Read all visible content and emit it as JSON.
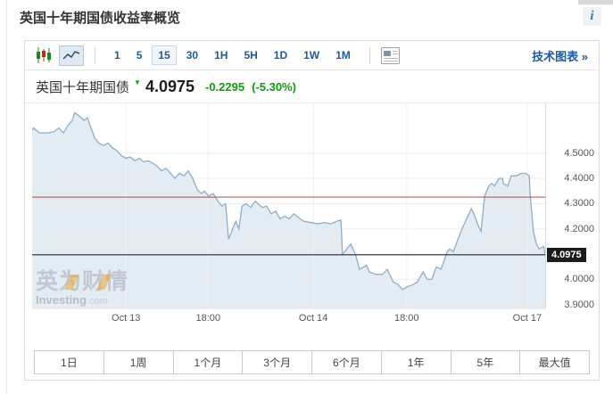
{
  "page": {
    "title": "英国十年期国债收益率概览"
  },
  "icons": [
    "candlestick-chart",
    "line-chart",
    "news-panel",
    "info"
  ],
  "info_icon_glyph": "i",
  "toolbar": {
    "intervals": [
      "1",
      "5",
      "15",
      "30",
      "1H",
      "5H",
      "1D",
      "1W",
      "1M"
    ],
    "selected_interval": "15",
    "technical_chart_label": "技术图表 »"
  },
  "quote": {
    "name": "英国十年期国债",
    "direction_arrow": "▼",
    "last": "4.0975",
    "change": "-0.2295",
    "change_pct": "(-5.30%)"
  },
  "watermark": {
    "cjk": "英为财情",
    "latin": "Investing",
    "tld": ".com"
  },
  "range_buttons": [
    "1日",
    "1周",
    "1个月",
    "3个月",
    "6个月",
    "1年",
    "5年",
    "最大值"
  ],
  "colors": {
    "accent_blue": "#1c5a9e",
    "quote_green": "#0f9d0f",
    "line": "#8fadc9",
    "fill": "#e2eaf2",
    "reference_red": "#c94040",
    "current_black": "#2a2a2a",
    "grid": "#ededed",
    "grid_vertical": "#f1f1f1"
  },
  "chart_data": {
    "type": "area",
    "ylim": [
      3.885,
      4.697
    ],
    "grid_values": [
      3.9,
      4.0,
      4.1,
      4.2,
      4.3,
      4.4,
      4.5
    ],
    "y_labels": [
      {
        "v": 4.5,
        "label": "4.5000"
      },
      {
        "v": 4.4,
        "label": "4.4000"
      },
      {
        "v": 4.3,
        "label": "4.3000"
      },
      {
        "v": 4.2,
        "label": "4.2000"
      },
      {
        "v": 4.0,
        "label": "4.0000"
      },
      {
        "v": 3.9,
        "label": "3.9000"
      }
    ],
    "x_ticks": [
      {
        "label": "Oct 13",
        "f": 0.183
      },
      {
        "label": "18:00",
        "f": 0.343
      },
      {
        "label": "Oct 14",
        "f": 0.548
      },
      {
        "label": "18:00",
        "f": 0.73
      },
      {
        "label": "Oct 17",
        "f": 0.965
      }
    ],
    "reference_line_value": 4.326,
    "current_value": 4.0975,
    "current_value_label": "4.0975",
    "points": [
      [
        0,
        4.59
      ],
      [
        0.003,
        4.6
      ],
      [
        0.014,
        4.58
      ],
      [
        0.031,
        4.58
      ],
      [
        0.043,
        4.585
      ],
      [
        0.052,
        4.6
      ],
      [
        0.061,
        4.58
      ],
      [
        0.07,
        4.61
      ],
      [
        0.078,
        4.63
      ],
      [
        0.083,
        4.66
      ],
      [
        0.09,
        4.65
      ],
      [
        0.096,
        4.64
      ],
      [
        0.101,
        4.63
      ],
      [
        0.108,
        4.64
      ],
      [
        0.113,
        4.61
      ],
      [
        0.122,
        4.56
      ],
      [
        0.13,
        4.54
      ],
      [
        0.139,
        4.53
      ],
      [
        0.148,
        4.54
      ],
      [
        0.157,
        4.52
      ],
      [
        0.165,
        4.51
      ],
      [
        0.174,
        4.49
      ],
      [
        0.183,
        4.48
      ],
      [
        0.191,
        4.485
      ],
      [
        0.2,
        4.47
      ],
      [
        0.209,
        4.48
      ],
      [
        0.217,
        4.465
      ],
      [
        0.226,
        4.47
      ],
      [
        0.235,
        4.46
      ],
      [
        0.243,
        4.45
      ],
      [
        0.252,
        4.43
      ],
      [
        0.261,
        4.44
      ],
      [
        0.27,
        4.42
      ],
      [
        0.278,
        4.4
      ],
      [
        0.287,
        4.42
      ],
      [
        0.296,
        4.41
      ],
      [
        0.304,
        4.43
      ],
      [
        0.313,
        4.4
      ],
      [
        0.322,
        4.355
      ],
      [
        0.33,
        4.34
      ],
      [
        0.336,
        4.35
      ],
      [
        0.344,
        4.33
      ],
      [
        0.353,
        4.34
      ],
      [
        0.362,
        4.31
      ],
      [
        0.37,
        4.29
      ],
      [
        0.377,
        4.3
      ],
      [
        0.383,
        4.16
      ],
      [
        0.391,
        4.2
      ],
      [
        0.397,
        4.23
      ],
      [
        0.403,
        4.2
      ],
      [
        0.409,
        4.29
      ],
      [
        0.417,
        4.3
      ],
      [
        0.426,
        4.285
      ],
      [
        0.435,
        4.31
      ],
      [
        0.44,
        4.3
      ],
      [
        0.449,
        4.285
      ],
      [
        0.457,
        4.29
      ],
      [
        0.466,
        4.26
      ],
      [
        0.475,
        4.27
      ],
      [
        0.483,
        4.24
      ],
      [
        0.492,
        4.25
      ],
      [
        0.501,
        4.24
      ],
      [
        0.51,
        4.26
      ],
      [
        0.522,
        4.24
      ],
      [
        0.53,
        4.23
      ],
      [
        0.544,
        4.225
      ],
      [
        0.557,
        4.22
      ],
      [
        0.569,
        4.225
      ],
      [
        0.583,
        4.22
      ],
      [
        0.593,
        4.23
      ],
      [
        0.602,
        4.235
      ],
      [
        0.605,
        4.1
      ],
      [
        0.621,
        4.14
      ],
      [
        0.63,
        4.1
      ],
      [
        0.638,
        4.04
      ],
      [
        0.652,
        4.055
      ],
      [
        0.657,
        4.03
      ],
      [
        0.67,
        4.02
      ],
      [
        0.683,
        4.02
      ],
      [
        0.692,
        4.04
      ],
      [
        0.704,
        3.99
      ],
      [
        0.713,
        3.98
      ],
      [
        0.722,
        3.96
      ],
      [
        0.73,
        3.97
      ],
      [
        0.743,
        3.98
      ],
      [
        0.751,
        3.99
      ],
      [
        0.762,
        4.03
      ],
      [
        0.77,
        4.0
      ],
      [
        0.779,
        4.0
      ],
      [
        0.788,
        4.05
      ],
      [
        0.797,
        4.04
      ],
      [
        0.809,
        4.11
      ],
      [
        0.814,
        4.12
      ],
      [
        0.821,
        4.11
      ],
      [
        0.83,
        4.16
      ],
      [
        0.838,
        4.2
      ],
      [
        0.847,
        4.24
      ],
      [
        0.856,
        4.28
      ],
      [
        0.861,
        4.26
      ],
      [
        0.87,
        4.21
      ],
      [
        0.875,
        4.19
      ],
      [
        0.882,
        4.33
      ],
      [
        0.89,
        4.37
      ],
      [
        0.896,
        4.38
      ],
      [
        0.901,
        4.37
      ],
      [
        0.91,
        4.4
      ],
      [
        0.917,
        4.4
      ],
      [
        0.918,
        4.38
      ],
      [
        0.927,
        4.37
      ],
      [
        0.934,
        4.41
      ],
      [
        0.943,
        4.41
      ],
      [
        0.953,
        4.42
      ],
      [
        0.962,
        4.42
      ],
      [
        0.969,
        4.41
      ],
      [
        0.97,
        4.35
      ],
      [
        0.977,
        4.19
      ],
      [
        0.983,
        4.14
      ],
      [
        0.988,
        4.12
      ],
      [
        0.997,
        4.13
      ],
      [
        1.0,
        4.0975
      ]
    ]
  }
}
